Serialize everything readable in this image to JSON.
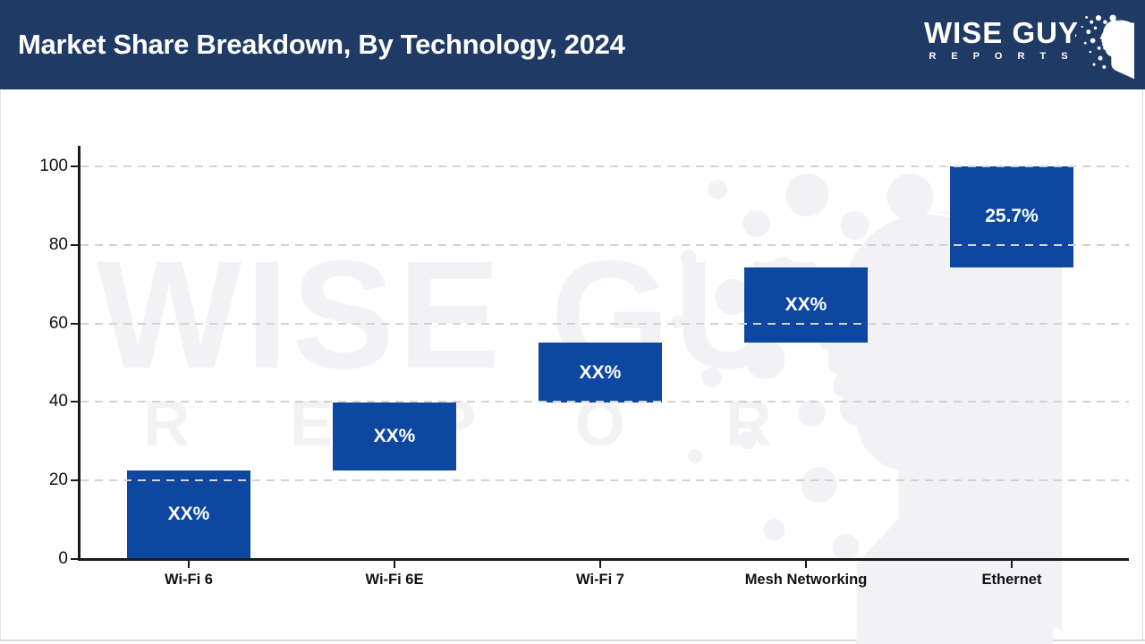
{
  "header": {
    "title": "Market Share Breakdown, By Technology, 2024",
    "logo": {
      "line1": "WISE GUY",
      "line2": "R E P O R T S"
    }
  },
  "watermark": {
    "line1": "WISE GUY",
    "line2": "R E P O R T S"
  },
  "colors": {
    "header_bg": "#203a66",
    "bar": "#0d479f",
    "bar_label": "#ffffff",
    "axis": "#1a1a1a",
    "grid": "#d3d3d3",
    "watermark": "#f2f2f4"
  },
  "chart_data": {
    "type": "bar",
    "subtype": "waterfall",
    "title": "Market Share Breakdown, By Technology, 2024",
    "xlabel": "",
    "ylabel": "",
    "categories": [
      "Wi-Fi 6",
      "Wi-Fi 6E",
      "Wi-Fi 7",
      "Mesh Networking",
      "Ethernet"
    ],
    "segments": [
      {
        "category": "Wi-Fi 6",
        "start": 0,
        "end": 22.6,
        "label": "XX%"
      },
      {
        "category": "Wi-Fi 6E",
        "start": 22.6,
        "end": 39.8,
        "label": "XX%"
      },
      {
        "category": "Wi-Fi 7",
        "start": 39.8,
        "end": 55.1,
        "label": "XX%"
      },
      {
        "category": "Mesh Networking",
        "start": 55.1,
        "end": 74.3,
        "label": "XX%"
      },
      {
        "category": "Ethernet",
        "start": 74.3,
        "end": 100,
        "label": "25.7%"
      }
    ],
    "yticks": [
      0,
      20,
      40,
      60,
      80,
      100
    ],
    "ylim": [
      0,
      105
    ],
    "grid": "horizontal dashed, drawn above bars",
    "legend": "none",
    "bar_color": "#0d479f",
    "label_color": "#ffffff"
  }
}
